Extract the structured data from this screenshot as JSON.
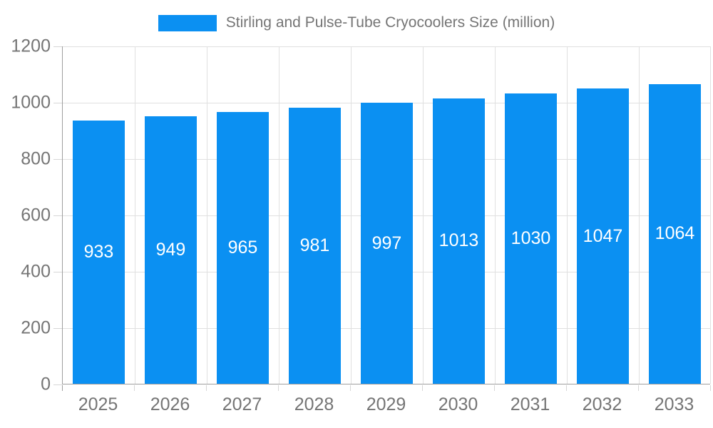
{
  "legend": {
    "label": "Stirling and Pulse-Tube Cryocoolers Size (million)"
  },
  "colors": {
    "bar": "#0B90F2",
    "grid": "#E0E0E0",
    "axis": "#9E9E9E",
    "tick": "#D6D6D6",
    "label_text": "#757575",
    "value_text": "#FFFFFF",
    "background": "#FFFFFF"
  },
  "chart_data": {
    "type": "bar",
    "title": "Stirling and Pulse-Tube Cryocoolers Size (million)",
    "categories": [
      "2025",
      "2026",
      "2027",
      "2028",
      "2029",
      "2030",
      "2031",
      "2032",
      "2033"
    ],
    "values": [
      933,
      949,
      965,
      981,
      997,
      1013,
      1030,
      1047,
      1064
    ],
    "series_name": "Stirling and Pulse-Tube Cryocoolers Size (million)",
    "xlabel": "",
    "ylabel": "",
    "ylim": [
      0,
      1200
    ],
    "yticks": [
      0,
      200,
      400,
      600,
      800,
      1000,
      1200
    ],
    "grid": true,
    "legend_position": "top-center",
    "bar_width_fraction": 0.73,
    "value_labels": "inside-center"
  }
}
